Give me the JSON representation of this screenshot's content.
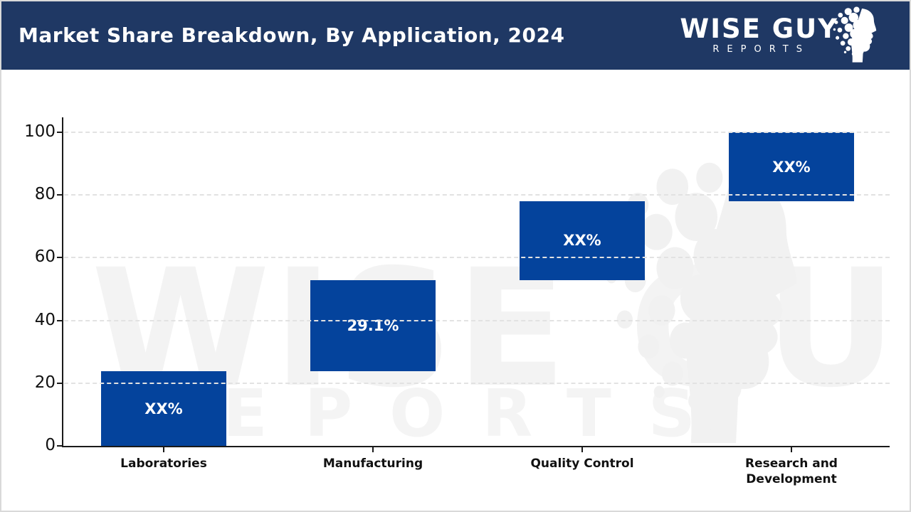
{
  "header": {
    "title": "Market Share Breakdown, By Application, 2024",
    "logo": {
      "line1": "WISE GUY",
      "line2": "REPORTS"
    }
  },
  "watermark": {
    "line1": "WISE GU",
    "line2": "REPORTS"
  },
  "chart_data": {
    "type": "bar",
    "subtype": "waterfall",
    "title": "Market Share Breakdown, By Application, 2024",
    "categories": [
      "Laboratories",
      "Manufacturing",
      "Quality Control",
      "Research and Development"
    ],
    "segments": [
      {
        "category": "Laboratories",
        "start": 0,
        "end": 23.8,
        "label": "XX%"
      },
      {
        "category": "Manufacturing",
        "start": 23.8,
        "end": 52.9,
        "label": "29.1%"
      },
      {
        "category": "Quality Control",
        "start": 52.9,
        "end": 78.0,
        "label": "XX%"
      },
      {
        "category": "Research and Development",
        "start": 78.0,
        "end": 100.0,
        "label": "XX%"
      }
    ],
    "y_ticks": [
      0,
      20,
      40,
      60,
      80,
      100
    ],
    "ylim": [
      0,
      105
    ],
    "xlabel": "",
    "ylabel": "",
    "grid": "horizontal-dashed",
    "legend": "none",
    "bar_color": "#04439C"
  },
  "colors": {
    "header_bg": "#1F3864",
    "bar": "#04439C",
    "grid": "#e2e2e2",
    "axis": "#1a1a1a",
    "watermark": "#f3f3f3",
    "page_border": "#d9d9d9"
  }
}
